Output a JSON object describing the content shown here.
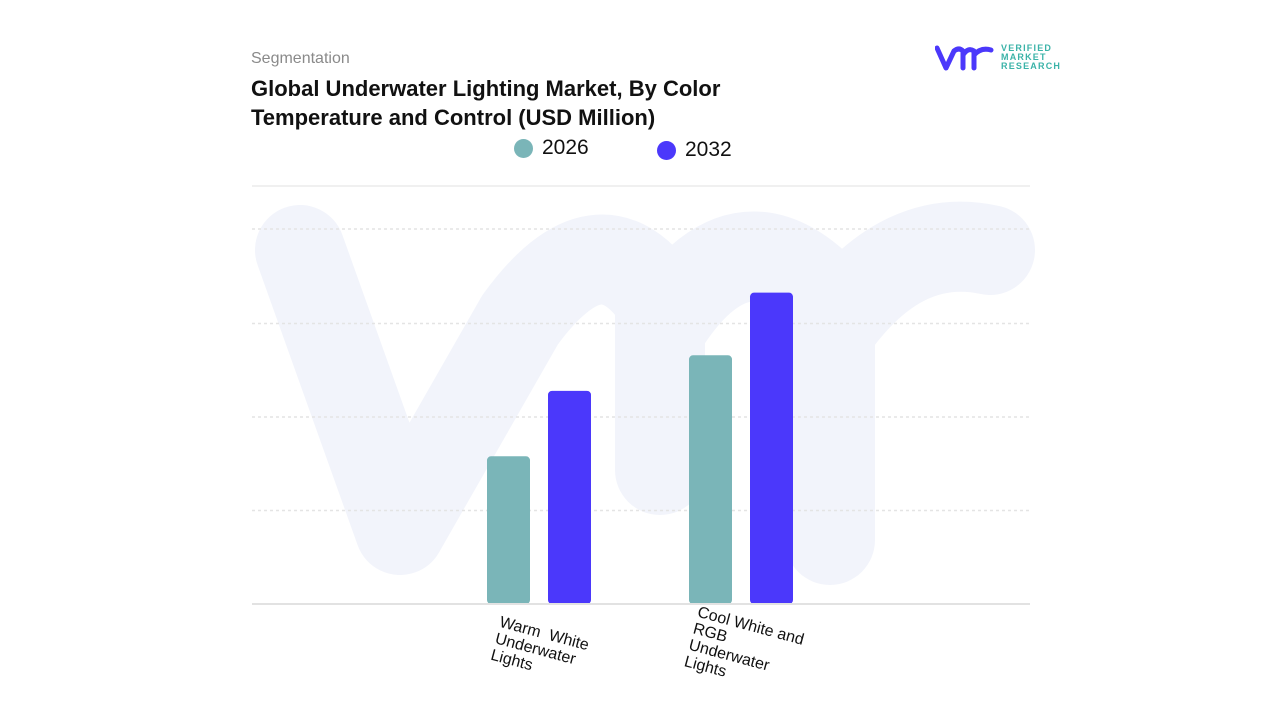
{
  "header": {
    "segment_label": "Segmentation",
    "title": "Global Underwater Lighting Market, By Color Temperature and Control (USD Million)"
  },
  "logo": {
    "text": "VERIFIED MARKET RESEARCH",
    "lines": [
      "VERIFIED",
      "MARKET",
      "RESEARCH"
    ]
  },
  "chart_data": {
    "type": "bar",
    "title": "Global Underwater Lighting Market, By Color Temperature and Control (USD Million)",
    "categories": [
      "Warm White Underwater Lights",
      "Cool White and RGB Underwater Lights"
    ],
    "series": [
      {
        "name": "2026",
        "color": "#7ab5b8",
        "values": [
          1.58,
          2.66
        ]
      },
      {
        "name": "2032",
        "color": "#4b38fb",
        "values": [
          2.28,
          3.33
        ]
      }
    ],
    "xlabel": "",
    "ylabel": "",
    "ylim": [
      0,
      4
    ],
    "y_axis_labels_shown": false,
    "grid": true,
    "legend_position": "top"
  }
}
